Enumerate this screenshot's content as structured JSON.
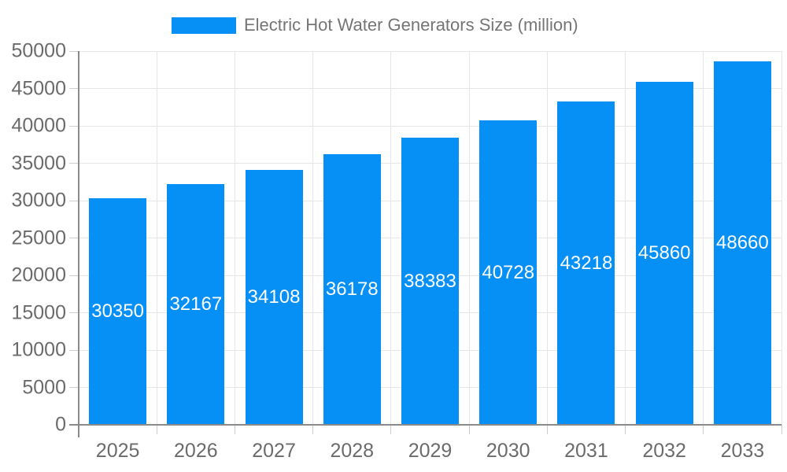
{
  "legend": {
    "label": "Electric Hot Water Generators Size (million)"
  },
  "colors": {
    "bar": "#0690f6",
    "grid": "#e6e6e6",
    "tick": "#cccccc",
    "axis_line": "#8a8a8a",
    "axis_text": "#6b6b6b",
    "legend_text": "#757575",
    "value_text": "#ffffff",
    "background": "#ffffff"
  },
  "chart_data": {
    "type": "bar",
    "title": "Electric Hot Water Generators Size (million)",
    "categories": [
      "2025",
      "2026",
      "2027",
      "2028",
      "2029",
      "2030",
      "2031",
      "2032",
      "2033"
    ],
    "values": [
      30350,
      32167,
      34108,
      36178,
      38383,
      40728,
      43218,
      45860,
      48660
    ],
    "xlabel": "",
    "ylabel": "",
    "ylim": [
      0,
      50000
    ],
    "ytick_step": 5000,
    "ytick_labels": [
      "0",
      "5000",
      "10000",
      "15000",
      "20000",
      "25000",
      "30000",
      "35000",
      "40000",
      "45000",
      "50000"
    ],
    "grid": true,
    "legend_position": "top",
    "value_label_position": "inside-center"
  }
}
